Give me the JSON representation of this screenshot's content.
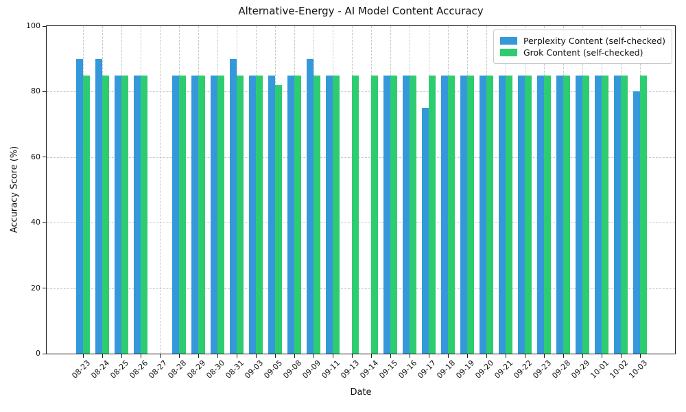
{
  "chart_data": {
    "type": "bar",
    "title": "Alternative-Energy - AI Model Content Accuracy",
    "xlabel": "Date",
    "ylabel": "Accuracy Score (%)",
    "ylim": [
      0,
      100
    ],
    "yticks": [
      0,
      20,
      40,
      60,
      80,
      100
    ],
    "grid": {
      "axes": "both",
      "style": "dashed",
      "color": "#c8c8c8"
    },
    "legend_position": "upper right",
    "background": "#ffffff",
    "categories": [
      "08-23",
      "08-24",
      "08-25",
      "08-26",
      "08-27",
      "08-28",
      "08-29",
      "08-30",
      "08-31",
      "09-03",
      "09-05",
      "09-08",
      "09-09",
      "09-11",
      "09-13",
      "09-14",
      "09-15",
      "09-16",
      "09-17",
      "09-18",
      "09-19",
      "09-20",
      "09-21",
      "09-22",
      "09-23",
      "09-28",
      "09-29",
      "10-01",
      "10-02",
      "10-03"
    ],
    "series": [
      {
        "name": "Perplexity Content (self-checked)",
        "color": "#3498db",
        "values": [
          90,
          90,
          85,
          85,
          null,
          85,
          85,
          85,
          90,
          85,
          85,
          85,
          90,
          85,
          null,
          null,
          85,
          85,
          75,
          85,
          85,
          85,
          85,
          85,
          85,
          85,
          85,
          85,
          85,
          80
        ]
      },
      {
        "name": "Grok Content (self-checked)",
        "color": "#2ecc71",
        "values": [
          85,
          85,
          85,
          85,
          null,
          85,
          85,
          85,
          85,
          85,
          82,
          85,
          85,
          85,
          85,
          85,
          85,
          85,
          85,
          85,
          85,
          85,
          85,
          85,
          85,
          85,
          85,
          85,
          85,
          85
        ]
      }
    ]
  }
}
